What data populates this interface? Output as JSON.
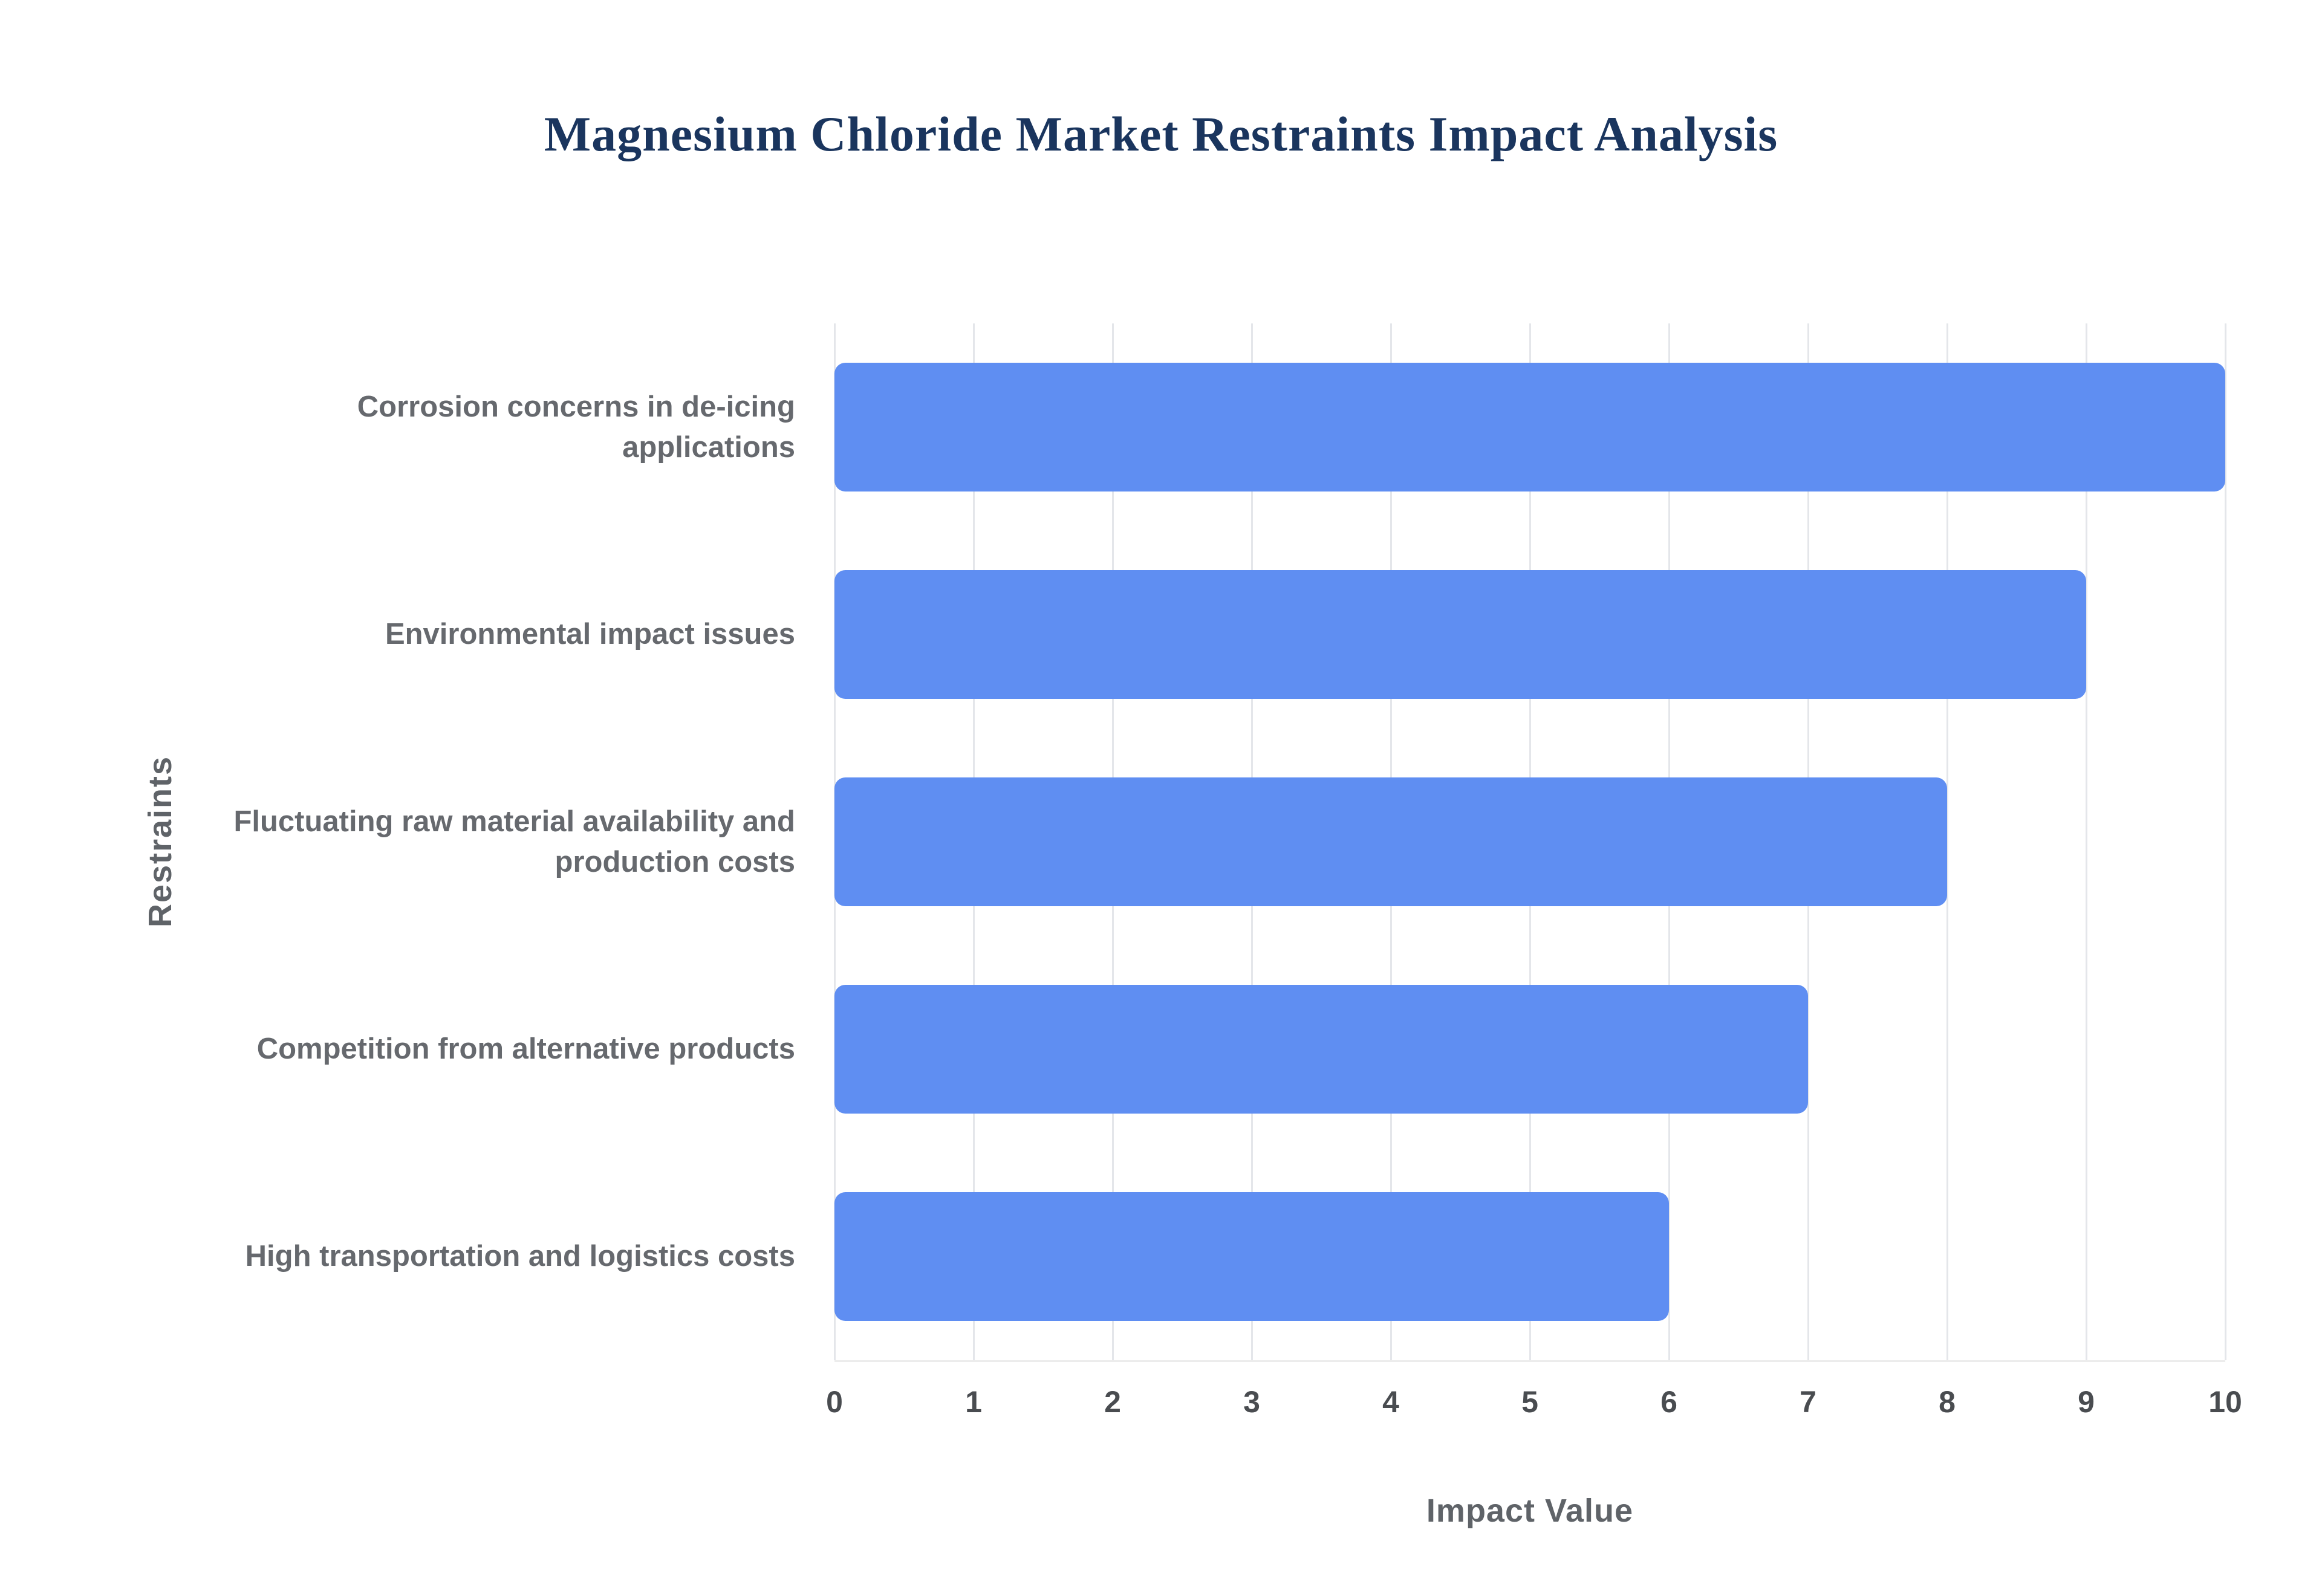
{
  "page": {
    "title": "Magnesium Chloride Market Restraints Impact Analysis"
  },
  "chart_data": {
    "type": "bar",
    "orientation": "horizontal",
    "title": "Magnesium Chloride Market Restraints Impact Analysis",
    "categories": [
      "Corrosion concerns in de-icing applications",
      "Environmental impact issues",
      "Fluctuating raw material availability and production costs",
      "Competition from alternative products",
      "High transportation and logistics costs"
    ],
    "values": [
      10,
      9,
      8,
      7,
      6
    ],
    "xlabel": "Impact Value",
    "ylabel": "Restraints",
    "xlim": [
      0,
      10
    ],
    "xticks": [
      0,
      1,
      2,
      3,
      4,
      5,
      6,
      7,
      8,
      9,
      10
    ],
    "grid": true,
    "legend_position": "none",
    "bar_color": "#5f8ef2",
    "title_color": "#1a355e",
    "label_color": "#66696e",
    "tick_color": "#494c50",
    "gridline_color": "#e4e6ea",
    "background_color": "#ffffff"
  }
}
